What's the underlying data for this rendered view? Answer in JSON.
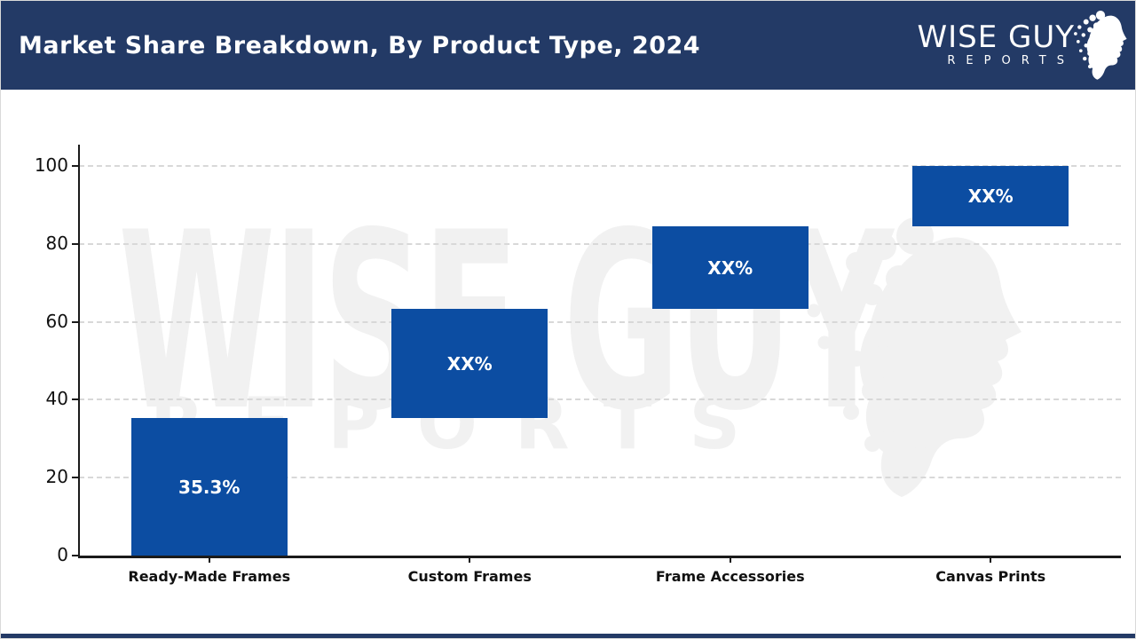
{
  "header": {
    "title": "Market Share Breakdown, By Product Type, 2024",
    "bg_color": "#233a66",
    "logo": {
      "line1": "WISE GUY",
      "line2": "REPORTS"
    }
  },
  "watermark": {
    "line1": "WISE GUY",
    "line2": "REPORTS"
  },
  "chart_data": {
    "type": "bar",
    "variant": "waterfall-stacked",
    "title": "Market Share Breakdown, By Product Type, 2024",
    "categories": [
      "Ready-Made Frames",
      "Custom Frames",
      "Frame Accessories",
      "Canvas Prints"
    ],
    "segments": [
      {
        "category": "Ready-Made Frames",
        "start": 0,
        "end": 35.3,
        "label": "35.3%"
      },
      {
        "category": "Custom Frames",
        "start": 35.3,
        "end": 63.3,
        "label": "XX%"
      },
      {
        "category": "Frame Accessories",
        "start": 63.3,
        "end": 84.5,
        "label": "XX%"
      },
      {
        "category": "Canvas Prints",
        "start": 84.5,
        "end": 100,
        "label": "XX%"
      }
    ],
    "ylim": [
      0,
      100
    ],
    "yticks": [
      0,
      20,
      40,
      60,
      80,
      100
    ],
    "grid": "horizontal-dashed",
    "legend": "none",
    "bar_color": "#0c4da2",
    "bar_label_color": "#ffffff",
    "axis_color": "#1a1a1a",
    "gridline_color": "#d8d8d8"
  }
}
